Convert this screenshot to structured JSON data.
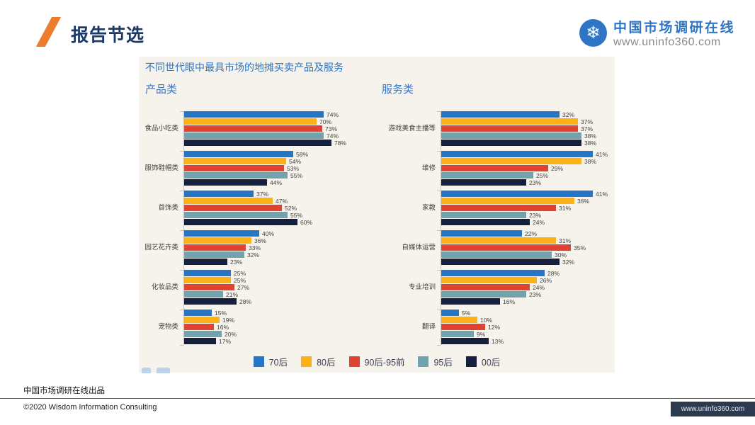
{
  "header": {
    "slide_title": "报告节选"
  },
  "brand": {
    "name": "中国市场调研在线",
    "url": "www.uninfo360.com",
    "logo_icon": "snowflake-icon",
    "logo_color": "#2E75C6"
  },
  "panel": {
    "title": "不同世代眼中最具市场的地摊买卖产品及服务"
  },
  "chart_data": [
    {
      "type": "bar",
      "orientation": "horizontal",
      "title": "产品类",
      "categories": [
        "食品小吃类",
        "服饰鞋帽类",
        "首饰类",
        "园艺花卉类",
        "化妆品类",
        "宠物类"
      ],
      "series": [
        {
          "name": "70后",
          "color": "#2776C6",
          "values": [
            74,
            58,
            37,
            40,
            25,
            15
          ]
        },
        {
          "name": "80后",
          "color": "#FCB116",
          "values": [
            70,
            54,
            47,
            36,
            25,
            19
          ]
        },
        {
          "name": "90后-95前",
          "color": "#E04331",
          "values": [
            73,
            53,
            52,
            33,
            27,
            16
          ]
        },
        {
          "name": "95后",
          "color": "#73A2AF",
          "values": [
            74,
            55,
            55,
            32,
            21,
            20
          ]
        },
        {
          "name": "00后",
          "color": "#14203E",
          "values": [
            78,
            44,
            60,
            23,
            28,
            17
          ]
        }
      ],
      "value_suffix": "%",
      "xmax": 100,
      "grid": false,
      "legend_position": "bottom-shared"
    },
    {
      "type": "bar",
      "orientation": "horizontal",
      "title": "服务类",
      "categories": [
        "游戏美食主播等",
        "维修",
        "家教",
        "自媒体运营",
        "专业培训",
        "翻译"
      ],
      "series": [
        {
          "name": "70后",
          "color": "#2776C6",
          "values": [
            32,
            41,
            41,
            22,
            28,
            5
          ]
        },
        {
          "name": "80后",
          "color": "#FCB116",
          "values": [
            37,
            38,
            36,
            31,
            26,
            10
          ]
        },
        {
          "name": "90后-95前",
          "color": "#E04331",
          "values": [
            37,
            29,
            31,
            35,
            24,
            12
          ]
        },
        {
          "name": "95后",
          "color": "#73A2AF",
          "values": [
            38,
            25,
            23,
            30,
            23,
            9
          ]
        },
        {
          "name": "00后",
          "color": "#14203E",
          "values": [
            38,
            23,
            24,
            32,
            16,
            13
          ]
        }
      ],
      "value_suffix": "%",
      "xmax": 45,
      "grid": false,
      "legend_position": "bottom-shared"
    }
  ],
  "legend": {
    "items": [
      {
        "label": "70后",
        "color": "#2776C6"
      },
      {
        "label": "80后",
        "color": "#FCB116"
      },
      {
        "label": "90后-95前",
        "color": "#E04331"
      },
      {
        "label": "95后",
        "color": "#73A2AF"
      },
      {
        "label": "00后",
        "color": "#14203E"
      }
    ]
  },
  "footer": {
    "producer": "中国市场调研在线出品",
    "copyright": "©2020 Wisdom Information Consulting",
    "site": "www.uninfo360.com"
  }
}
